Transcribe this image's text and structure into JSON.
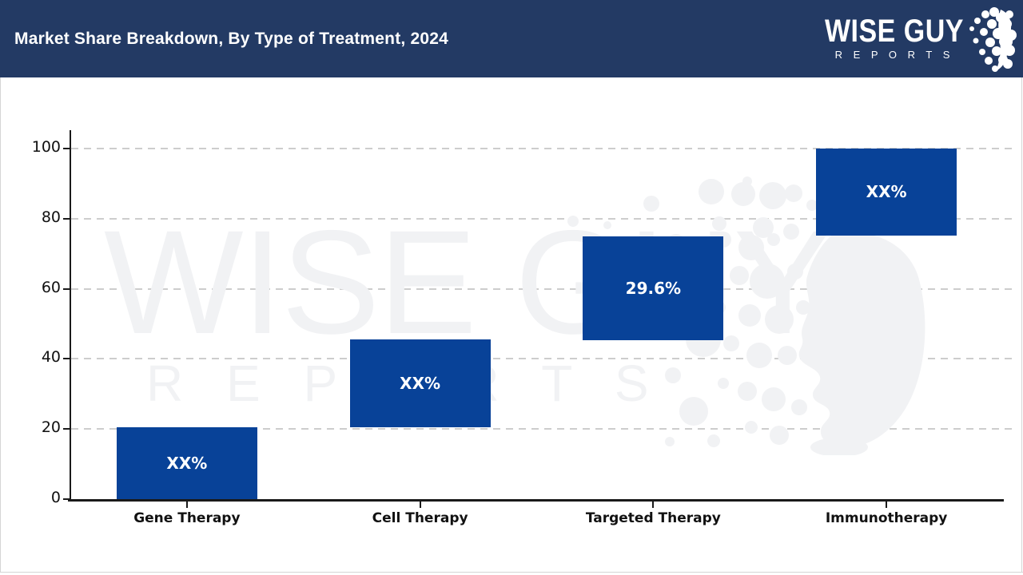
{
  "header": {
    "title": "Market Share Breakdown, By Type of Treatment, 2024",
    "logo": {
      "brand_line1": "WISE GUY",
      "brand_line2": "R E P O R T S"
    }
  },
  "watermark": {
    "line1": "WISE GUY",
    "line2": "R E P O R T S"
  },
  "colors": {
    "header_background": "#233a64",
    "bar_fill": "#084298",
    "bar_label_text": "#ffffff",
    "grid_line": "#cdcdcd",
    "axis_line": "#1a1a1a",
    "watermark": "#f1f2f4"
  },
  "chart_data": {
    "type": "bar",
    "subtype": "floating-waterfall",
    "title": "Market Share Breakdown, By Type of Treatment, 2024",
    "categories": [
      "Gene Therapy",
      "Cell Therapy",
      "Targeted Therapy",
      "Immunotherapy"
    ],
    "bars": [
      {
        "category": "Gene Therapy",
        "start": 0,
        "end": 20.5,
        "label": "XX%"
      },
      {
        "category": "Cell Therapy",
        "start": 20.5,
        "end": 45.5,
        "label": "XX%"
      },
      {
        "category": "Targeted Therapy",
        "start": 45.4,
        "end": 75.0,
        "label": "29.6%"
      },
      {
        "category": "Immunotherapy",
        "start": 75.2,
        "end": 100.0,
        "label": "XX%"
      }
    ],
    "xlabel": "",
    "ylabel": "",
    "ylim": [
      0,
      100
    ],
    "yticks": [
      0,
      20,
      40,
      60,
      80,
      100
    ],
    "grid": "horizontal-dashed",
    "legend": "none"
  }
}
